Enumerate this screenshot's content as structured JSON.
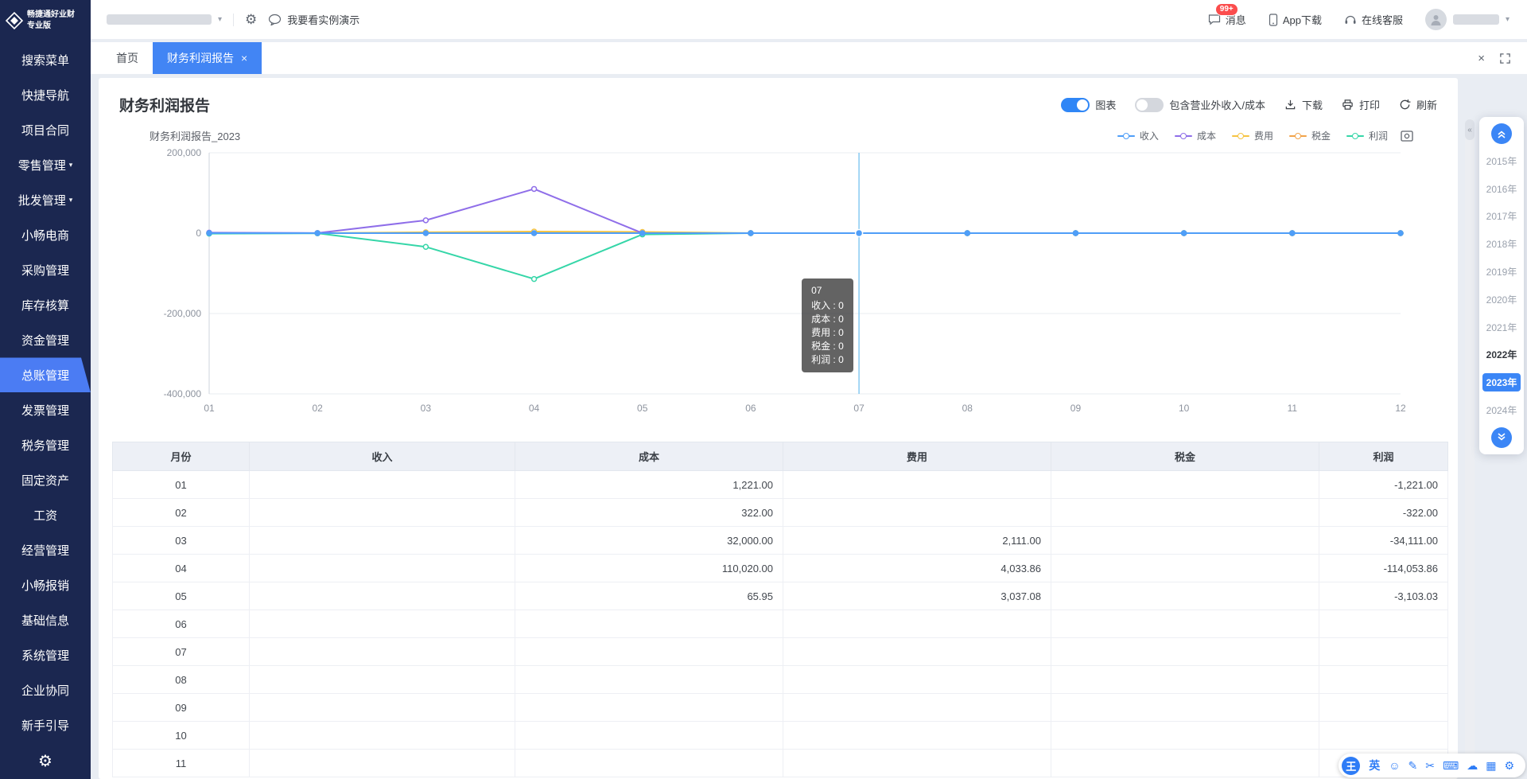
{
  "colors": {
    "accent": "#2f86f6",
    "sidebar_bg": "#1b2750",
    "sidebar_active": "#4b7cf3",
    "tab_active": "#4285f4",
    "badge_red": "#fb4d4d",
    "crosshair": "#86c9f1",
    "table_header_bg": "#edf0f6"
  },
  "app": {
    "logo_title": "畅捷通好业财",
    "logo_subtitle": "专业版"
  },
  "sidebar": {
    "items": [
      {
        "label": "搜索菜单"
      },
      {
        "label": "快捷导航"
      },
      {
        "label": "项目合同"
      },
      {
        "label": "零售管理",
        "arrow": true
      },
      {
        "label": "批发管理",
        "arrow": true
      },
      {
        "label": "小畅电商"
      },
      {
        "label": "采购管理"
      },
      {
        "label": "库存核算"
      },
      {
        "label": "资金管理"
      },
      {
        "label": "总账管理",
        "active": true
      },
      {
        "label": "发票管理"
      },
      {
        "label": "税务管理"
      },
      {
        "label": "固定资产"
      },
      {
        "label": "工资"
      },
      {
        "label": "经营管理"
      },
      {
        "label": "小畅报销"
      },
      {
        "label": "基础信息"
      },
      {
        "label": "系统管理"
      },
      {
        "label": "企业协同"
      },
      {
        "label": "新手引导"
      }
    ]
  },
  "topbar": {
    "demo_label": "我要看实例演示",
    "message_label": "消息",
    "message_badge": "99+",
    "app_download_label": "App下载",
    "support_label": "在线客服"
  },
  "tabs": {
    "items": [
      {
        "label": "首页",
        "active": false,
        "closable": false
      },
      {
        "label": "财务利润报告",
        "active": true,
        "closable": true
      }
    ],
    "close_glyph": "×"
  },
  "page": {
    "title": "财务利润报告",
    "controls": {
      "chart_toggle_label": "图表",
      "chart_toggle_on": true,
      "extra_toggle_label": "包含营业外收入/成本",
      "extra_toggle_on": false,
      "download_label": "下载",
      "print_label": "打印",
      "refresh_label": "刷新"
    }
  },
  "chart_data": {
    "type": "line",
    "title": "财务利润报告_2023",
    "x": [
      "01",
      "02",
      "03",
      "04",
      "05",
      "06",
      "07",
      "08",
      "09",
      "10",
      "11",
      "12"
    ],
    "ylim": [
      -400000,
      200000
    ],
    "yticks": [
      {
        "value": 200000,
        "label": "200,000"
      },
      {
        "value": 0,
        "label": "0"
      },
      {
        "value": -200000,
        "label": "-200,000"
      },
      {
        "value": -400000,
        "label": "-400,000"
      }
    ],
    "grid": true,
    "legend_position": "top-right",
    "series": [
      {
        "name": "收入",
        "color": "#4f9ef8",
        "z": 5,
        "filled": true,
        "values": [
          0,
          0,
          0,
          0,
          0,
          0,
          0,
          0,
          0,
          0,
          0,
          0
        ]
      },
      {
        "name": "成本",
        "color": "#8f6ee9",
        "z": 3,
        "filled": false,
        "values": [
          1221,
          322,
          32000,
          110020,
          65.95,
          0,
          0,
          0,
          0,
          0,
          0,
          0
        ]
      },
      {
        "name": "费用",
        "color": "#f6c443",
        "z": 2,
        "filled": false,
        "values": [
          0,
          0,
          2111,
          4033.86,
          3037.08,
          0,
          0,
          0,
          0,
          0,
          0,
          0
        ]
      },
      {
        "name": "税金",
        "color": "#f2a44a",
        "z": 1,
        "filled": false,
        "values": [
          0,
          0,
          0,
          0,
          0,
          0,
          0,
          0,
          0,
          0,
          0,
          0
        ]
      },
      {
        "name": "利润",
        "color": "#35d6a8",
        "z": 4,
        "filled": false,
        "values": [
          -1221,
          -322,
          -34111,
          -114053.86,
          -3103.03,
          0,
          0,
          0,
          0,
          0,
          0,
          0
        ]
      }
    ],
    "tooltip": {
      "month": "07",
      "rows": [
        "收入 : 0",
        "成本 : 0",
        "费用 : 0",
        "税金 : 0",
        "利润 : 0"
      ]
    }
  },
  "year_panel": {
    "collapse_icon": "«",
    "years": [
      "2015年",
      "2016年",
      "2017年",
      "2018年",
      "2019年",
      "2020年",
      "2021年",
      "2022年",
      "2023年",
      "2024年"
    ],
    "selected": "2023年",
    "highlighted": "2022年"
  },
  "table": {
    "headers": [
      "月份",
      "收入",
      "成本",
      "费用",
      "税金",
      "利润"
    ],
    "rows": [
      [
        "01",
        "",
        "1,221.00",
        "",
        "",
        "-1,221.00"
      ],
      [
        "02",
        "",
        "322.00",
        "",
        "",
        "-322.00"
      ],
      [
        "03",
        "",
        "32,000.00",
        "2,111.00",
        "",
        "-34,111.00"
      ],
      [
        "04",
        "",
        "110,020.00",
        "4,033.86",
        "",
        "-114,053.86"
      ],
      [
        "05",
        "",
        "65.95",
        "3,037.08",
        "",
        "-3,103.03"
      ],
      [
        "06",
        "",
        "",
        "",
        "",
        ""
      ],
      [
        "07",
        "",
        "",
        "",
        "",
        ""
      ],
      [
        "08",
        "",
        "",
        "",
        "",
        ""
      ],
      [
        "09",
        "",
        "",
        "",
        "",
        ""
      ],
      [
        "10",
        "",
        "",
        "",
        "",
        ""
      ],
      [
        "11",
        "",
        "",
        "",
        "",
        ""
      ]
    ]
  },
  "ime_bar": {
    "logo": "王",
    "lang": "英",
    "tools": [
      {
        "name": "emoji-icon",
        "glyph": "☺"
      },
      {
        "name": "handwriting-pen-icon",
        "glyph": "✎"
      },
      {
        "name": "screenshot-scissors-icon",
        "glyph": "✂"
      },
      {
        "name": "keyboard-icon",
        "glyph": "⌨"
      },
      {
        "name": "cloud-icon",
        "glyph": "☁"
      },
      {
        "name": "toolbox-icon",
        "glyph": "▦"
      },
      {
        "name": "ime-settings-icon",
        "glyph": "⚙"
      }
    ]
  }
}
